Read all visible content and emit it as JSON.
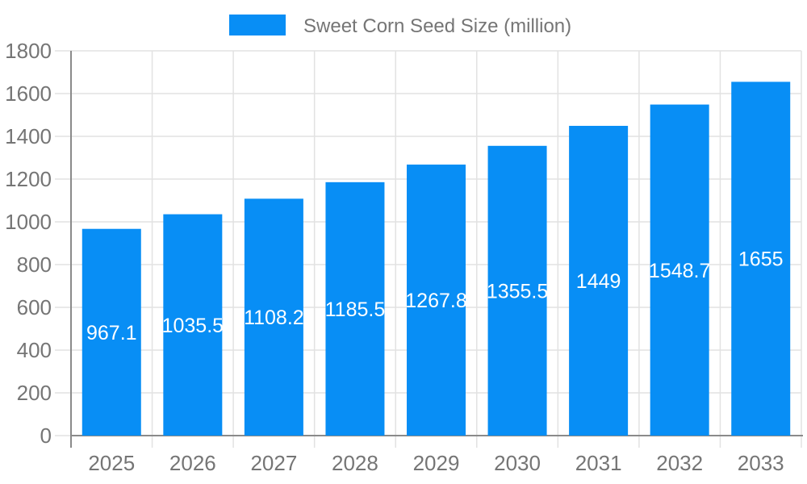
{
  "chart_data": {
    "type": "bar",
    "title": "Sweet Corn Seed Size (million)",
    "categories": [
      "2025",
      "2026",
      "2027",
      "2028",
      "2029",
      "2030",
      "2031",
      "2032",
      "2033"
    ],
    "series": [
      {
        "name": "Sweet Corn Seed Size (million)",
        "values": [
          967.1,
          1035.5,
          1108.2,
          1185.5,
          1267.8,
          1355.5,
          1449,
          1548.7,
          1655
        ]
      }
    ],
    "value_labels": [
      "967.1",
      "1035.5",
      "1108.2",
      "1185.5",
      "1267.8",
      "1355.5",
      "1449",
      "1548.7",
      "1655"
    ],
    "xlabel": "",
    "ylabel": "",
    "ylim": [
      0,
      1800
    ],
    "y_ticks": [
      0,
      200,
      400,
      600,
      800,
      1000,
      1200,
      1400,
      1600,
      1800
    ],
    "grid": "horizontal-and-vertical",
    "legend_position": "top-center",
    "value_label_position": "inside-center",
    "colors": {
      "bar": "#088ef5",
      "axis_line": "#8a8a8a",
      "grid_line": "#e2e2e2",
      "tick_label": "#757575",
      "legend_text": "#757575",
      "value_label": "#ffffff",
      "background": "#ffffff"
    }
  }
}
